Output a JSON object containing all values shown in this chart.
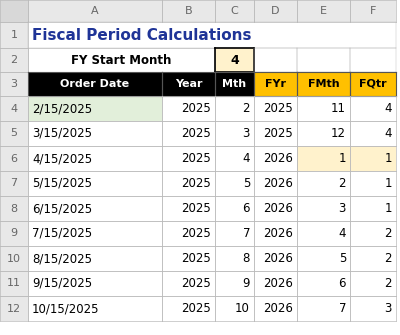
{
  "title": "Fiscal Period Calculations",
  "title_color": "#1F3497",
  "fy_start_label": "FY Start Month",
  "fy_start_value": "4",
  "col_headers": [
    "Order Date",
    "Year",
    "Mth",
    "FYr",
    "FMth",
    "FQtr"
  ],
  "col_keys": [
    "date",
    "year",
    "mth",
    "fyr",
    "fmth",
    "fqtr"
  ],
  "rows": [
    {
      "date": "2/15/2025",
      "year": "2025",
      "mth": "2",
      "fyr": "2025",
      "fmth": "11",
      "fqtr": "4"
    },
    {
      "date": "3/15/2025",
      "year": "2025",
      "mth": "3",
      "fyr": "2025",
      "fmth": "12",
      "fqtr": "4"
    },
    {
      "date": "4/15/2025",
      "year": "2025",
      "mth": "4",
      "fyr": "2026",
      "fmth": "1",
      "fqtr": "1"
    },
    {
      "date": "5/15/2025",
      "year": "2025",
      "mth": "5",
      "fyr": "2026",
      "fmth": "2",
      "fqtr": "1"
    },
    {
      "date": "6/15/2025",
      "year": "2025",
      "mth": "6",
      "fyr": "2026",
      "fmth": "3",
      "fqtr": "1"
    },
    {
      "date": "7/15/2025",
      "year": "2025",
      "mth": "7",
      "fyr": "2026",
      "fmth": "4",
      "fqtr": "2"
    },
    {
      "date": "8/15/2025",
      "year": "2025",
      "mth": "8",
      "fyr": "2026",
      "fmth": "5",
      "fqtr": "2"
    },
    {
      "date": "9/15/2025",
      "year": "2025",
      "mth": "9",
      "fyr": "2026",
      "fmth": "6",
      "fqtr": "2"
    },
    {
      "date": "10/15/2025",
      "year": "2025",
      "mth": "10",
      "fyr": "2026",
      "fmth": "7",
      "fqtr": "3"
    }
  ],
  "header_bg": "#000000",
  "header_fg": "#FFFFFF",
  "header_yellow_bg": "#FFC000",
  "header_yellow_fg": "#000000",
  "data_bg_default": "#FFFFFF",
  "data_bg_light_green": "#E2EFDA",
  "data_bg_light_yellow": "#FFF2CC",
  "fy_start_cell_bg": "#FFF2CC",
  "col_header_bg": "#E8E8E8",
  "col_header_fg": "#666666",
  "row_num_bg": "#E8E8E8",
  "row_num_fg": "#666666",
  "corner_bg": "#D8D8D8",
  "figsize": [
    4.0,
    3.35
  ],
  "dpi": 100
}
